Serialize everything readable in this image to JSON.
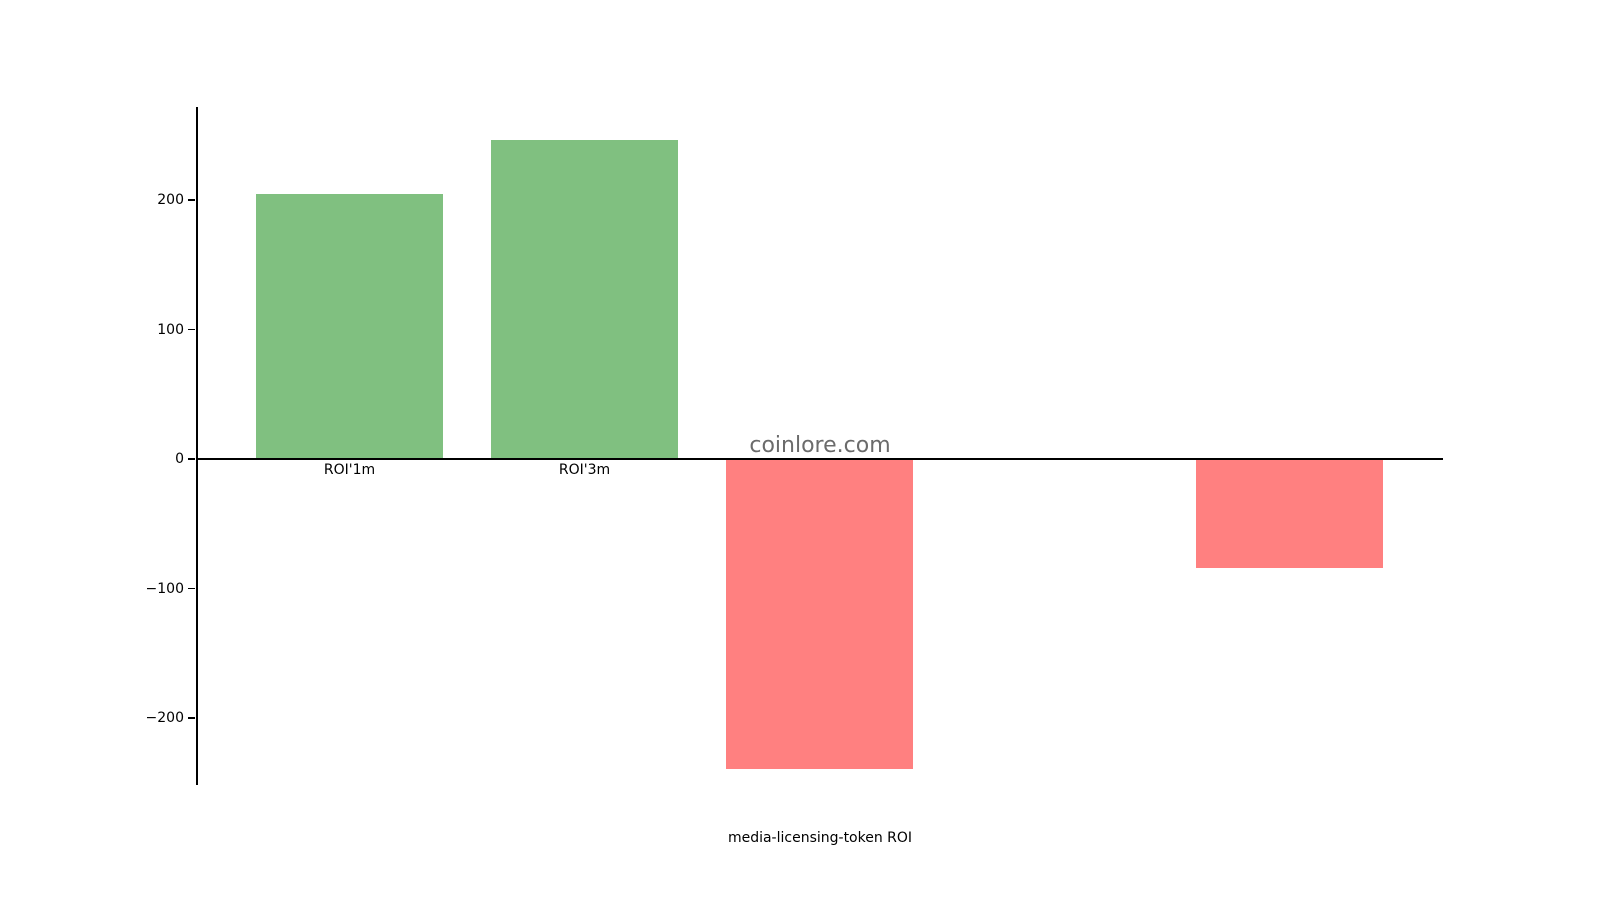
{
  "page": {
    "background_color": "#ffffff"
  },
  "watermark": {
    "text": "coinlore.com",
    "color": "#6b6b6b"
  },
  "chart_data": {
    "type": "bar",
    "title": "",
    "xlabel": "media-licensing-token ROI",
    "ylabel": "",
    "categories": [
      "ROI'1m",
      "ROI'3m",
      "",
      "",
      ""
    ],
    "values": [
      205,
      246,
      -239,
      0,
      -84
    ],
    "series": [
      {
        "name": "ROI",
        "values": [
          205,
          246,
          -239,
          0,
          -84
        ]
      }
    ],
    "y_ticks": [
      200,
      100,
      0,
      -100,
      -200
    ],
    "y_tick_labels": [
      "200",
      "100",
      "0",
      "−100",
      "−200"
    ],
    "ylim": [
      -252,
      272
    ],
    "grid": false,
    "legend": false,
    "colors": {
      "positive_bar": "#80c080",
      "negative_bar": "#ff8080",
      "axis": "#000000",
      "tick_text": "#000000",
      "xlabel_text": "#000000"
    }
  }
}
